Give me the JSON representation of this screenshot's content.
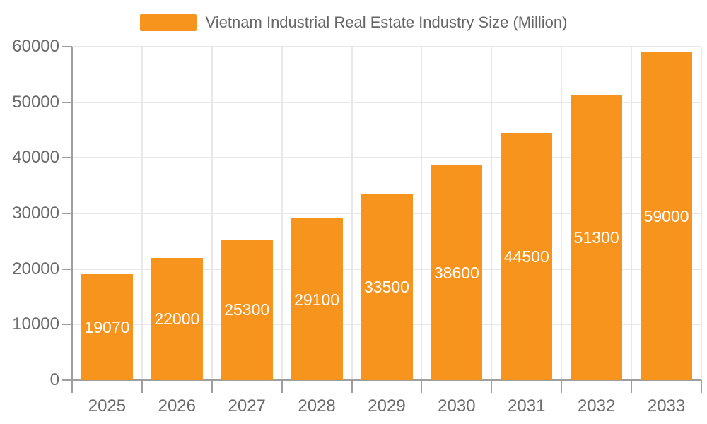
{
  "legend": {
    "label": "Vietnam Industrial Real Estate Industry Size (Million)"
  },
  "chart_data": {
    "type": "bar",
    "title": "Vietnam Industrial Real Estate Industry Size (Million)",
    "series_name": "Vietnam Industrial Real Estate Industry Size (Million)",
    "categories": [
      "2025",
      "2026",
      "2027",
      "2028",
      "2029",
      "2030",
      "2031",
      "2032",
      "2033"
    ],
    "values": [
      19070,
      22000,
      25300,
      29100,
      33500,
      38600,
      44500,
      51300,
      59000
    ],
    "bar_labels": [
      "19070",
      "22000",
      "25300",
      "29100",
      "33500",
      "38600",
      "44500",
      "51300",
      "59000"
    ],
    "xlabel": "",
    "ylabel": "",
    "ylim": [
      0,
      60000
    ],
    "yticks": [
      0,
      10000,
      20000,
      30000,
      40000,
      50000,
      60000
    ],
    "ytick_labels": [
      "0",
      "10000",
      "20000",
      "30000",
      "40000",
      "50000",
      "60000"
    ],
    "grid": true,
    "legend_position": "top",
    "colors": {
      "bar": "#f7941e",
      "bar_label_text": "#ffffff",
      "axis_line": "#9e9e9e",
      "grid_line": "#e8e8e8",
      "tick_text": "#6b6b6b",
      "legend_text": "#666666",
      "background": "#ffffff"
    }
  }
}
